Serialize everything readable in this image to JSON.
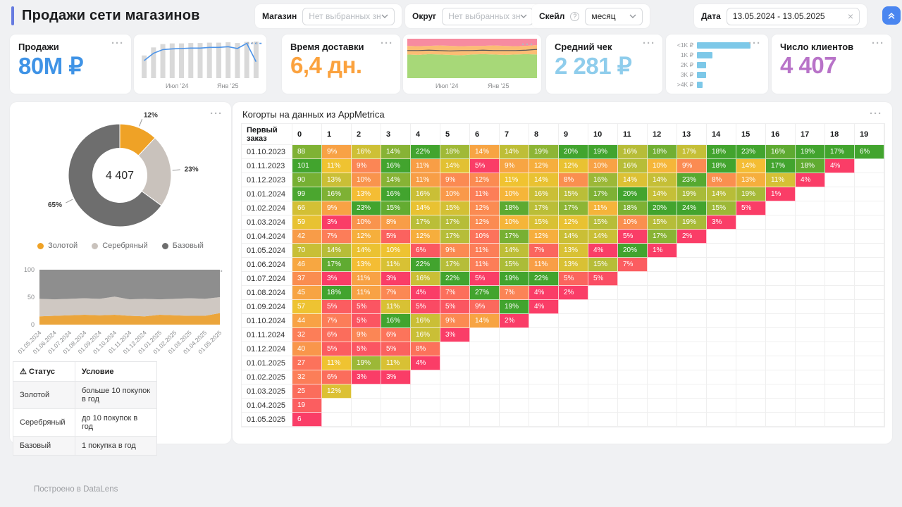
{
  "header": {
    "title": "Продажи сети магазинов",
    "filters": {
      "store": {
        "label": "Магазин",
        "placeholder": "Нет выбранных значений"
      },
      "district": {
        "label": "Округ",
        "placeholder": "Нет выбранных значений"
      },
      "scale": {
        "label": "Скейл",
        "value": "месяц",
        "info_icon": "?"
      },
      "date": {
        "label": "Дата",
        "value": "13.05.2024 - 13.05.2025",
        "clear_icon": "×"
      }
    }
  },
  "kpis": {
    "sales": {
      "label": "Продажи",
      "value": "80М ₽",
      "color": "#3f93e6"
    },
    "delivery": {
      "label": "Время доставки",
      "value": "6,4 дн.",
      "color": "#fba23e"
    },
    "avg_check": {
      "label": "Средний чек",
      "value": "2 281 ₽",
      "color": "#8fcdec"
    },
    "clients": {
      "label": "Число клиентов",
      "value": "4 407",
      "color": "#b873c8"
    }
  },
  "icons": {
    "menu_dots": "···"
  },
  "chart_data": [
    {
      "id": "sales_sparkline",
      "type": "bar+line",
      "x_tick_labels": [
        "Июл '24",
        "Янв '25"
      ],
      "bar_values_pct": [
        62,
        84,
        93,
        95,
        95,
        96,
        96,
        97,
        97,
        98,
        96,
        99,
        100
      ],
      "line_values_pct": [
        48,
        68,
        78,
        80,
        81,
        82,
        82,
        84,
        84,
        86,
        81,
        95,
        45
      ],
      "forecast_dash_pct": 95,
      "bar_color": "#d9d9d9",
      "line_color": "#4d94e8"
    },
    {
      "id": "delivery_bands",
      "type": "stacked-area",
      "x_tick_labels": [
        "Июл '24",
        "Янв '25"
      ],
      "green_top": [
        60,
        59,
        61,
        60,
        59,
        58,
        60,
        61,
        60,
        59,
        60,
        61,
        60
      ],
      "orange_top": [
        82,
        81,
        82,
        83,
        82,
        81,
        82,
        82,
        83,
        82,
        81,
        82,
        84
      ],
      "line": [
        70,
        70,
        71,
        70,
        69,
        70,
        70,
        71,
        70,
        70,
        70,
        71,
        73
      ],
      "colors": {
        "green": "#a7d878",
        "orange": "#fbbd74",
        "pink": "#f78ba0",
        "line": "#555555"
      }
    },
    {
      "id": "check_histogram",
      "type": "bar-horizontal",
      "categories": [
        "<1K ₽",
        "1K ₽",
        "2K ₽",
        "3K ₽",
        ">4K ₽"
      ],
      "values_pct_of_max": [
        100,
        29,
        17,
        17,
        11
      ],
      "bar_color": "#7dc8e8"
    },
    {
      "id": "loyalty_donut",
      "type": "donut",
      "center_total": "4 407",
      "segments": [
        {
          "label": "Золотой",
          "pct": 12,
          "color": "#efa226"
        },
        {
          "label": "Серебряный",
          "pct": 23,
          "color": "#c9c2bc"
        },
        {
          "label": "Базовый",
          "pct": 65,
          "color": "#6e6e6e"
        }
      ]
    },
    {
      "id": "loyalty_area",
      "type": "stacked-area-100",
      "ylim": [
        0,
        100
      ],
      "yticks": [
        0,
        50,
        100
      ],
      "x_labels": [
        "01.05.2024",
        "01.06.2024",
        "01.07.2024",
        "01.08.2024",
        "01.09.2024",
        "01.10.2024",
        "01.11.2024",
        "01.12.2024",
        "01.01.2025",
        "01.02.2025",
        "01.03.2025",
        "01.04.2025",
        "01.05.2025"
      ],
      "gold_top": [
        15,
        16,
        17,
        18,
        17,
        18,
        16,
        15,
        18,
        17,
        16,
        16,
        21
      ],
      "silver_top": [
        47,
        46,
        47,
        48,
        47,
        51,
        46,
        47,
        46,
        47,
        48,
        47,
        50
      ],
      "colors": {
        "gold": "#eba53b",
        "silver": "#cfc8c2",
        "base": "#8e8e8e"
      }
    }
  ],
  "status_table": {
    "icon": "⚠",
    "col1": "Статус",
    "col2": "Условие",
    "rows": [
      {
        "status": "Золотой",
        "condition": "больше 10 покупок в год"
      },
      {
        "status": "Серебряный",
        "condition": "до 10 покупок в год"
      },
      {
        "status": "Базовый",
        "condition": "1 покупка в год"
      }
    ]
  },
  "cohort": {
    "title": "Когорты на данных из AppMetrica",
    "first_col_header": "Первый заказ",
    "column_headers": [
      "0",
      "1",
      "2",
      "3",
      "4",
      "5",
      "6",
      "7",
      "8",
      "9",
      "10",
      "11",
      "12",
      "13",
      "14",
      "15",
      "16",
      "17",
      "18",
      "19"
    ],
    "rows": [
      {
        "date": "01.10.2023",
        "values": [
          88,
          9,
          16,
          14,
          22,
          18,
          14,
          14,
          19,
          20,
          19,
          16,
          18,
          17,
          18,
          23,
          16,
          19,
          17,
          6
        ]
      },
      {
        "date": "01.11.2023",
        "values": [
          101,
          11,
          9,
          16,
          11,
          14,
          5,
          9,
          12,
          12,
          10,
          16,
          10,
          9,
          18,
          14,
          17,
          18,
          4
        ]
      },
      {
        "date": "01.12.2023",
        "values": [
          90,
          13,
          10,
          14,
          11,
          9,
          12,
          11,
          14,
          8,
          16,
          14,
          14,
          23,
          8,
          13,
          11,
          4
        ]
      },
      {
        "date": "01.01.2024",
        "values": [
          99,
          16,
          13,
          16,
          16,
          10,
          11,
          10,
          16,
          15,
          17,
          20,
          14,
          19,
          14,
          19,
          1
        ]
      },
      {
        "date": "01.02.2024",
        "values": [
          66,
          9,
          23,
          15,
          14,
          15,
          12,
          18,
          17,
          17,
          11,
          18,
          20,
          24,
          15,
          5
        ]
      },
      {
        "date": "01.03.2024",
        "values": [
          59,
          3,
          10,
          8,
          17,
          17,
          12,
          10,
          15,
          12,
          15,
          10,
          15,
          19,
          3
        ]
      },
      {
        "date": "01.04.2024",
        "values": [
          42,
          7,
          12,
          5,
          12,
          17,
          10,
          17,
          12,
          14,
          14,
          5,
          17,
          2
        ]
      },
      {
        "date": "01.05.2024",
        "values": [
          70,
          14,
          14,
          10,
          6,
          9,
          11,
          14,
          7,
          13,
          4,
          20,
          1
        ]
      },
      {
        "date": "01.06.2024",
        "values": [
          46,
          17,
          13,
          11,
          22,
          17,
          11,
          15,
          11,
          13,
          15,
          7
        ]
      },
      {
        "date": "01.07.2024",
        "values": [
          37,
          3,
          11,
          3,
          16,
          22,
          5,
          19,
          22,
          5,
          5
        ]
      },
      {
        "date": "01.08.2024",
        "values": [
          45,
          18,
          11,
          7,
          4,
          7,
          27,
          7,
          4,
          2
        ]
      },
      {
        "date": "01.09.2024",
        "values": [
          57,
          5,
          5,
          11,
          5,
          5,
          9,
          19,
          4
        ]
      },
      {
        "date": "01.10.2024",
        "values": [
          44,
          7,
          5,
          16,
          16,
          9,
          14,
          2
        ]
      },
      {
        "date": "01.11.2024",
        "values": [
          32,
          6,
          9,
          6,
          16,
          3
        ]
      },
      {
        "date": "01.12.2024",
        "values": [
          40,
          5,
          5,
          5,
          8
        ]
      },
      {
        "date": "01.01.2025",
        "values": [
          27,
          11,
          19,
          11,
          4
        ]
      },
      {
        "date": "01.02.2025",
        "values": [
          32,
          6,
          3,
          3
        ]
      },
      {
        "date": "01.03.2025",
        "values": [
          25,
          12
        ]
      },
      {
        "date": "01.04.2025",
        "values": [
          19
        ]
      },
      {
        "date": "01.05.2025",
        "values": [
          6
        ]
      }
    ]
  },
  "footer": {
    "text": "Построено в DataLens"
  }
}
